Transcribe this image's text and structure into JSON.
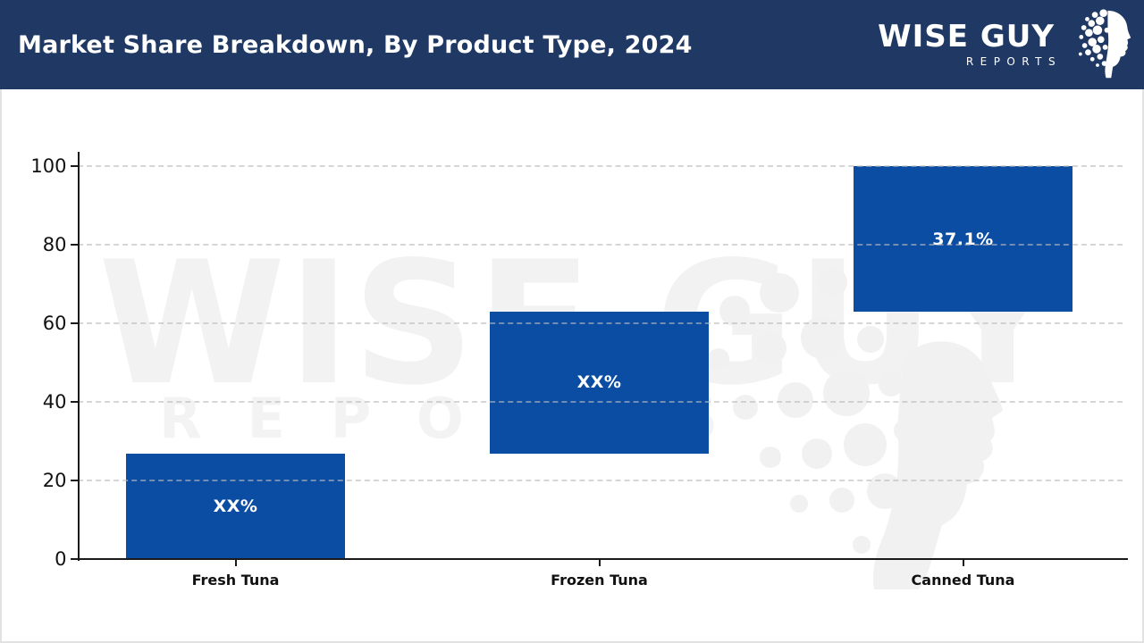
{
  "header": {
    "title": "Market Share Breakdown, By Product Type, 2024",
    "logo": {
      "word": "WISE GUY",
      "sub": "REPORTS"
    }
  },
  "watermark": {
    "line1": "WISE GUY",
    "line2": "REPORTS"
  },
  "chart_data": {
    "type": "bar",
    "subtype": "floating-waterfall",
    "title": "Market Share Breakdown, By Product Type, 2024",
    "categories": [
      "Fresh Tuna",
      "Frozen Tuna",
      "Canned Tuna"
    ],
    "bars": [
      {
        "category": "Fresh Tuna",
        "start": 0,
        "end": 26.8,
        "value": 26.8,
        "label": "XX%"
      },
      {
        "category": "Frozen Tuna",
        "start": 26.8,
        "end": 62.9,
        "value": 36.1,
        "label": "XX%"
      },
      {
        "category": "Canned Tuna",
        "start": 62.9,
        "end": 100,
        "value": 37.1,
        "label": "37.1%"
      }
    ],
    "xlabel": "",
    "ylabel": "",
    "ylim": [
      0,
      100
    ],
    "yticks": [
      0,
      20,
      40,
      60,
      80,
      100
    ],
    "grid": "horizontal-dashed",
    "legend": "none",
    "bar_color": "#0b4da2",
    "label_color": "#ffffff",
    "axis_color": "#1a1a1a",
    "header_color": "#1f3864"
  }
}
